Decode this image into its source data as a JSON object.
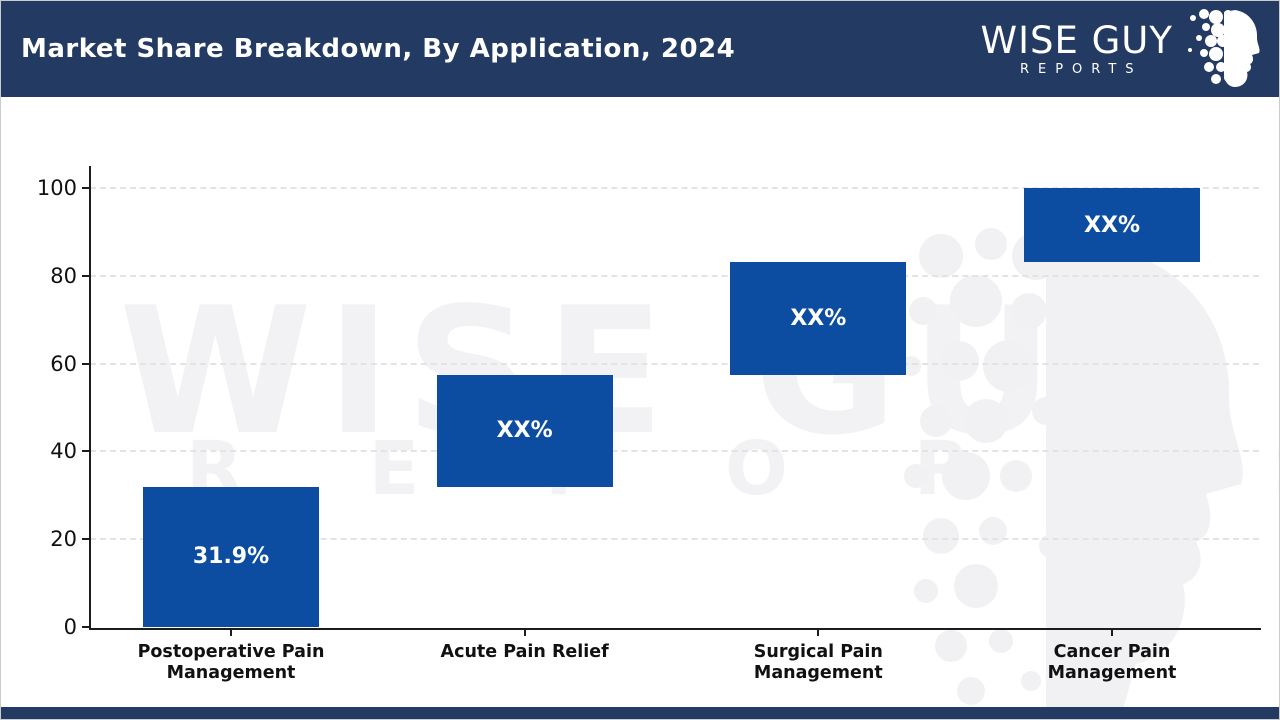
{
  "header": {
    "title": "Market Share Breakdown, By Application, 2024",
    "logo": {
      "line1": "WISE GUY",
      "line2": "REPORTS"
    }
  },
  "watermark": {
    "line1": "WISE GU",
    "line2": "R E P O R T S"
  },
  "colors": {
    "header_bg": "#233a63",
    "footer_bg": "#233a63",
    "bar": "#0d4da1",
    "bar_label": "#ffffff",
    "grid": "#e3e3e3",
    "axis": "#1c1c1c",
    "watermark": "#f2f2f5"
  },
  "chart_data": {
    "type": "bar",
    "subtype": "waterfall",
    "title": "Market Share Breakdown, By Application, 2024",
    "xlabel": "",
    "ylabel": "",
    "categories": [
      "Postoperative Pain Management",
      "Acute Pain Relief",
      "Surgical Pain Management",
      "Cancer Pain Management"
    ],
    "segments": [
      {
        "category": "Postoperative Pain Management",
        "start": 0,
        "end": 31.9,
        "value": 31.9,
        "label": "31.9%"
      },
      {
        "category": "Acute Pain Relief",
        "start": 31.9,
        "end": 57.4,
        "value": 25.5,
        "label": "XX%"
      },
      {
        "category": "Surgical Pain Management",
        "start": 57.4,
        "end": 83.1,
        "value": 25.7,
        "label": "XX%"
      },
      {
        "category": "Cancer Pain Management",
        "start": 83.1,
        "end": 100,
        "value": 16.9,
        "label": "XX%"
      }
    ],
    "yticks": [
      0,
      20,
      40,
      60,
      80,
      100
    ],
    "ylim": [
      0,
      105
    ],
    "grid": "horizontal-dashed",
    "legend": "none",
    "bar_color": "#0d4da1"
  }
}
